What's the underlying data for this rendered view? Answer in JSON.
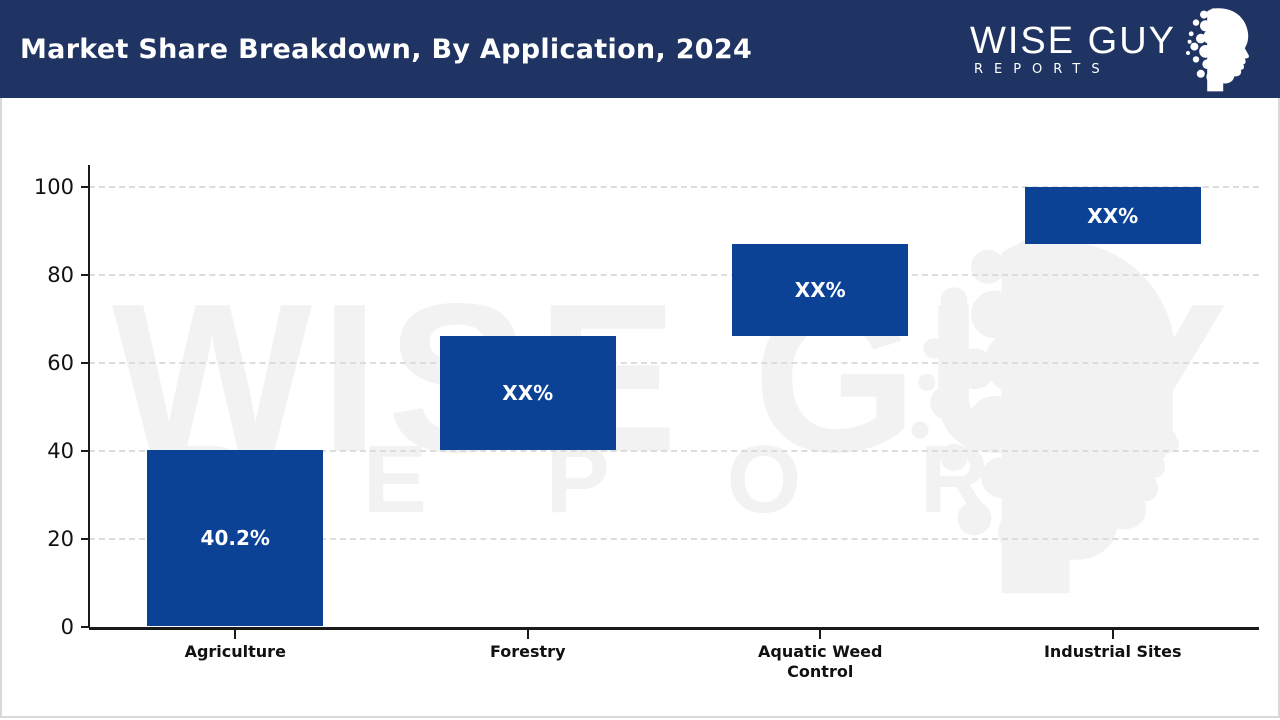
{
  "header": {
    "title": "Market Share Breakdown, By Application, 2024",
    "brand": {
      "line1": "WISE GUY",
      "line2": "REPORTS"
    }
  },
  "watermark": {
    "line1": "WISE GUY",
    "line2": "REPORTS"
  },
  "chart_data": {
    "type": "bar",
    "subtype": "waterfall-stacked-segments",
    "title": "Market Share Breakdown, By Application, 2024",
    "categories": [
      "Agriculture",
      "Forestry",
      "Aquatic Weed Control",
      "Industrial Sites"
    ],
    "series": [
      {
        "name": "Agriculture",
        "lines": [
          "Agriculture"
        ],
        "start": 0,
        "end": 40.2,
        "label": "40.2%"
      },
      {
        "name": "Forestry",
        "lines": [
          "Forestry"
        ],
        "start": 40.2,
        "end": 66,
        "label": "XX%"
      },
      {
        "name": "Aquatic Weed Control",
        "lines": [
          "Aquatic Weed",
          "Control"
        ],
        "start": 66,
        "end": 87,
        "label": "XX%"
      },
      {
        "name": "Industrial Sites",
        "lines": [
          "Industrial Sites"
        ],
        "start": 87,
        "end": 100,
        "label": "XX%"
      }
    ],
    "y_ticks": [
      0,
      20,
      40,
      60,
      80,
      100
    ],
    "ylim": [
      0,
      105
    ],
    "grid": "dashed horizontal",
    "legend": "none",
    "bar_color": "#0b4296",
    "bar_label_color": "#ffffff",
    "axis_color": "#1a1a1a",
    "header_color": "#1f3462"
  }
}
